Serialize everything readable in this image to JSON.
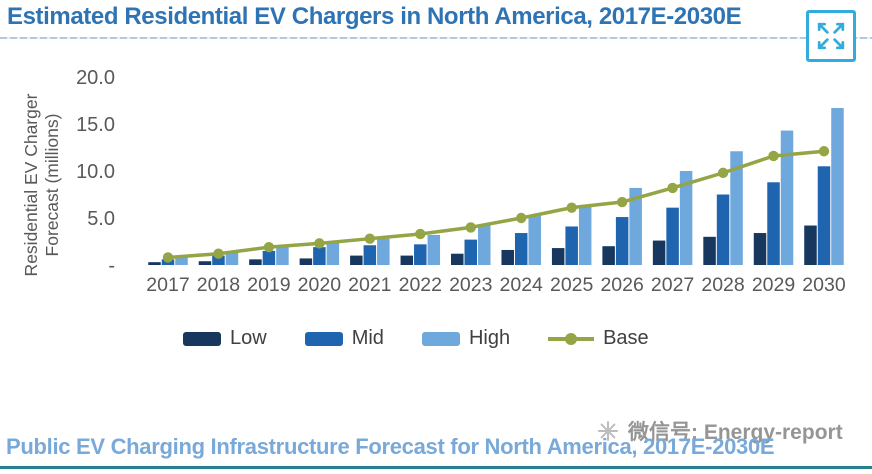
{
  "header": {
    "title": "Estimated Residential EV Chargers in North America, 2017E-2030E"
  },
  "chart_data": {
    "type": "bar",
    "title": "Estimated Residential EV Chargers in North America, 2017E-2030E",
    "xlabel": "",
    "ylabel": "Residential EV Charger Forecast (millions)",
    "ylabel_lines": [
      "Residential EV Charger",
      "Forecast (millions)"
    ],
    "ylim": [
      0,
      21
    ],
    "grid": false,
    "legend_position": "bottom",
    "yticks": [
      {
        "label": "20.0",
        "value": 20
      },
      {
        "label": "15.0",
        "value": 15
      },
      {
        "label": "10.0",
        "value": 10
      },
      {
        "label": "5.0",
        "value": 5
      },
      {
        "label": "-",
        "value": 0
      }
    ],
    "categories": [
      "2017",
      "2018",
      "2019",
      "2020",
      "2021",
      "2022",
      "2023",
      "2024",
      "2025",
      "2026",
      "2027",
      "2028",
      "2029",
      "2030"
    ],
    "series": [
      {
        "name": "Low",
        "type": "bar",
        "color": "#17375E",
        "values": [
          0.3,
          0.4,
          0.6,
          0.7,
          1.0,
          1.0,
          1.2,
          1.6,
          1.8,
          2.0,
          2.6,
          3.0,
          3.4,
          4.2
        ]
      },
      {
        "name": "Mid",
        "type": "bar",
        "color": "#1F64AE",
        "values": [
          0.6,
          1.0,
          1.5,
          1.9,
          2.1,
          2.2,
          2.7,
          3.4,
          4.1,
          5.1,
          6.1,
          7.5,
          8.8,
          10.5
        ]
      },
      {
        "name": "High",
        "type": "bar",
        "color": "#6FA8DC",
        "values": [
          0.9,
          1.3,
          2.0,
          2.4,
          2.8,
          3.2,
          4.2,
          5.3,
          6.3,
          8.2,
          10.0,
          12.1,
          14.3,
          16.7
        ]
      },
      {
        "name": "Base",
        "type": "line",
        "color": "#94A545",
        "values": [
          0.8,
          1.2,
          1.9,
          2.3,
          2.8,
          3.3,
          4.0,
          5.0,
          6.1,
          6.7,
          8.2,
          9.8,
          11.6,
          12.1
        ]
      }
    ]
  },
  "footer": {
    "title": "Public EV Charging Infrastructure Forecast for North America, 2017E-2030E"
  },
  "watermark": {
    "text": "微信号: Energy-report"
  },
  "colors": {
    "title_blue": "#2E74B5",
    "footer_title_blue": "#79A9D9",
    "footer_rule_teal": "#25818F",
    "expand_icon_cyan": "#33ABDC",
    "axis_text_gray": "#595959",
    "legend_text": "#404040",
    "watermark_gray": "#8a8a8a"
  }
}
